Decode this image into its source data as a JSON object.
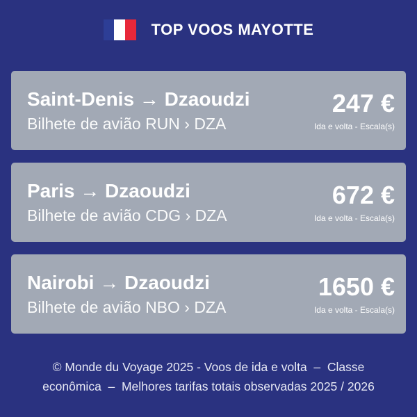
{
  "theme": {
    "background": "#2A3280",
    "card_background": "#A2A9B5",
    "text": "#FFFFFF",
    "footer_text": "#E7E9F4",
    "flag_blue": "#2D3E96",
    "flag_white": "#FFFFFF",
    "flag_red": "#E8283A"
  },
  "header": {
    "title": "TOP VOOS MAYOTTE",
    "flag_icon": "france-flag-icon"
  },
  "flights": [
    {
      "route": "Saint-Denis → Dzaoudzi",
      "ticket": "Bilhete de avião RUN › DZA",
      "price": "247 €",
      "note": "Ida e volta - Escala(s)"
    },
    {
      "route": "Paris → Dzaoudzi",
      "ticket": "Bilhete de avião CDG › DZA",
      "price": "672 €",
      "note": "Ida e volta - Escala(s)"
    },
    {
      "route": "Nairobi → Dzaoudzi",
      "ticket": "Bilhete de avião NBO › DZA",
      "price": "1650 €",
      "note": "Ida e volta - Escala(s)"
    }
  ],
  "footer": {
    "line1": "© Monde du Voyage 2025 - Voos de ida e volta  –  Classe",
    "line2": "econômica  –  Melhores tarifas totais observadas 2025 / 2026"
  }
}
